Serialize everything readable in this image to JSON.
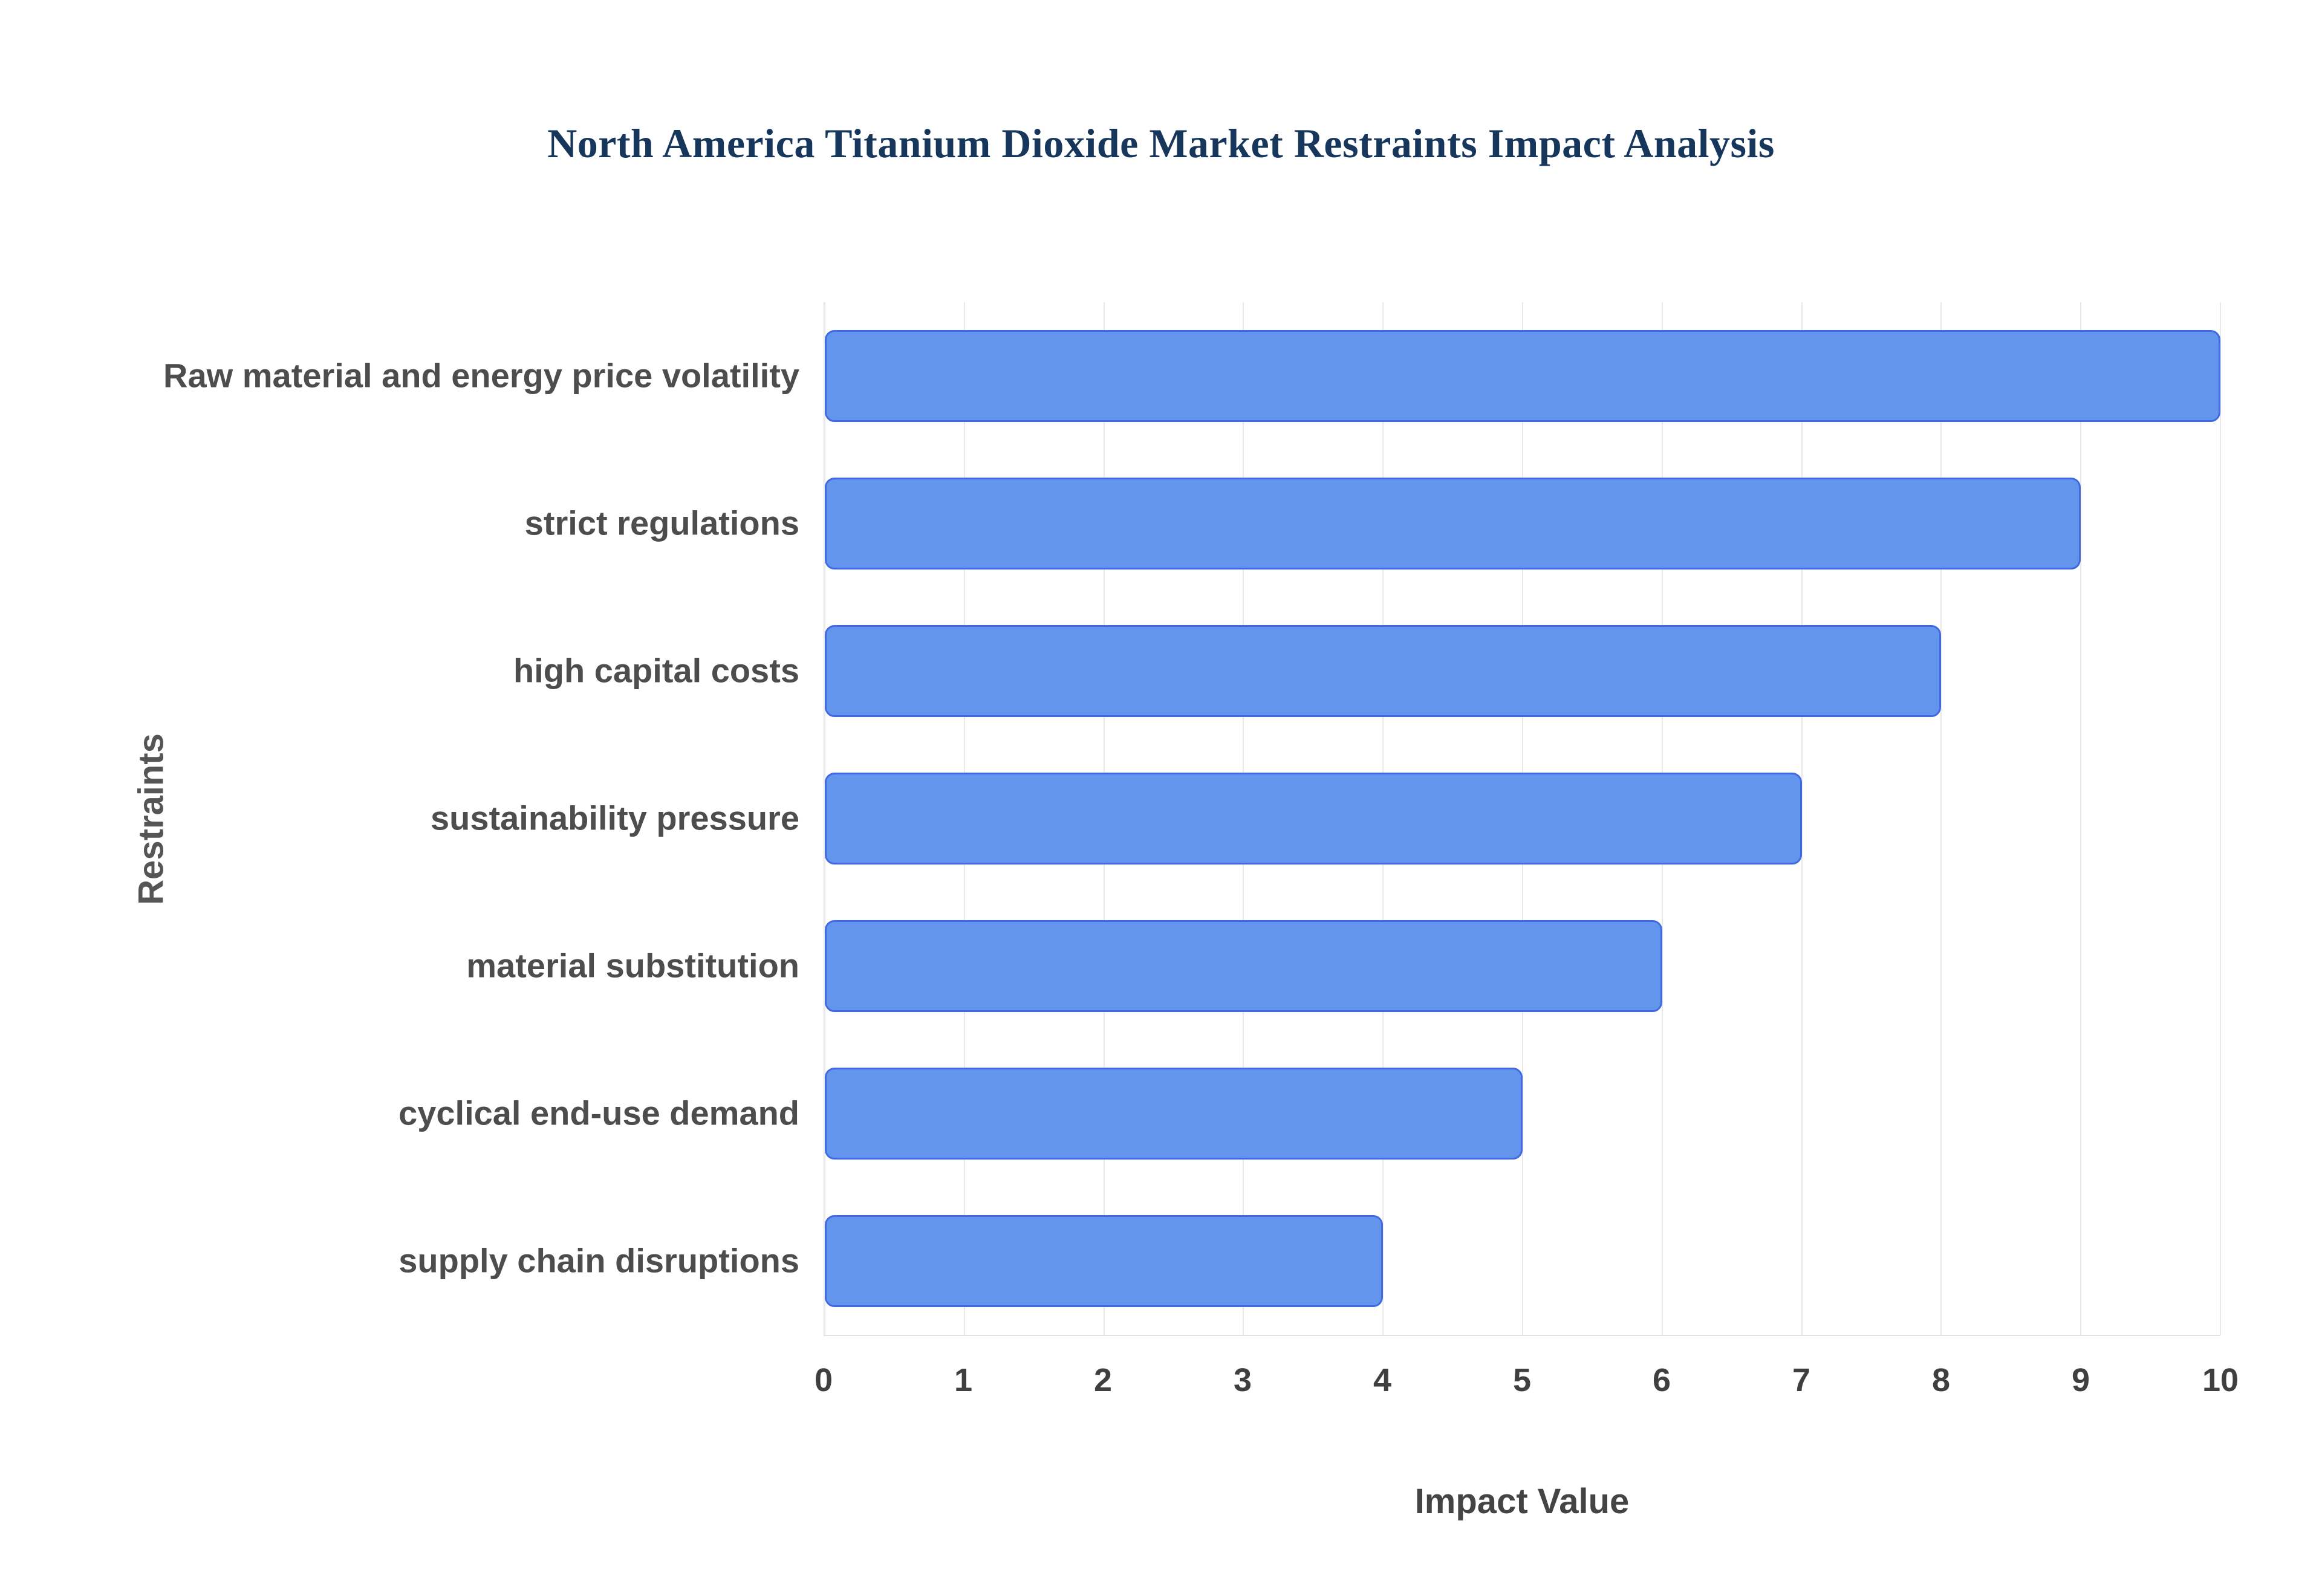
{
  "title": "North America Titanium Dioxide Market Restraints Impact Analysis",
  "chart_data": {
    "type": "bar",
    "orientation": "horizontal",
    "title": "North America Titanium Dioxide Market Restraints Impact Analysis",
    "categories": [
      "Raw material and energy price volatility",
      "strict regulations",
      "high capital costs",
      "sustainability pressure",
      "material substitution",
      "cyclical end-use demand",
      "supply chain disruptions"
    ],
    "values": [
      10,
      9,
      8,
      7,
      6,
      5,
      4
    ],
    "xlabel": "Impact Value",
    "ylabel": "Restraints",
    "xlim": [
      0,
      10
    ],
    "xticks": [
      0,
      1,
      2,
      3,
      4,
      5,
      6,
      7,
      8,
      9,
      10
    ],
    "grid": true,
    "legend": "none",
    "colors": {
      "bar_fill": "#6495ED",
      "bar_border": "#4169E1",
      "title_text": "#16365c",
      "axis_text": "#444444",
      "grid_line": "#e8e8e8"
    }
  }
}
